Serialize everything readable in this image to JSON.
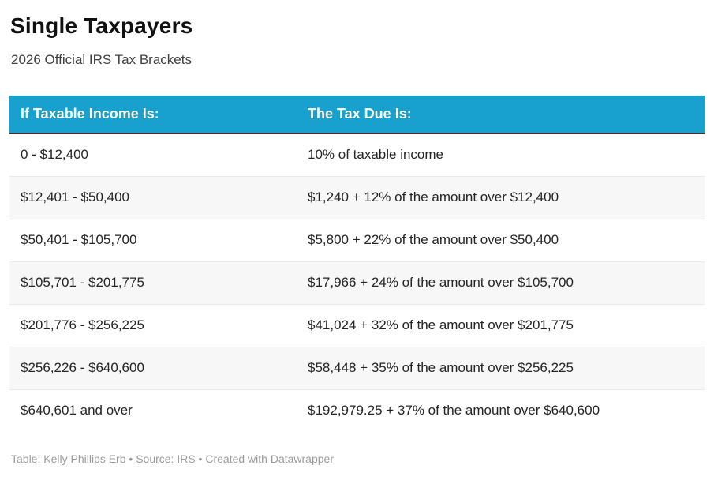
{
  "chart_data": {
    "type": "table",
    "title": "Single Taxpayers",
    "subtitle": "2026 Official IRS Tax Brackets",
    "columns": [
      "If Taxable Income Is:",
      "The Tax Due Is:"
    ],
    "rows": [
      [
        "0 - $12,400",
        "10% of taxable income"
      ],
      [
        "$12,401 - $50,400",
        "$1,240 + 12% of the amount over $12,400"
      ],
      [
        "$50,401 - $105,700",
        "$5,800 + 22% of the amount over $50,400"
      ],
      [
        "$105,701 - $201,775",
        "$17,966 + 24% of the amount over $105,700"
      ],
      [
        "$201,776 - $256,225",
        "$41,024 + 32% of the amount over $201,775"
      ],
      [
        "$256,226 - $640,600",
        "$58,448 + 35% of the amount over $256,225"
      ],
      [
        "$640,601 and over",
        "$192,979.25 + 37% of the amount over $640,600"
      ]
    ],
    "footer": "Table: Kelly Phillips Erb • Source: IRS • Created with Datawrapper",
    "legend_position": "none",
    "grid": false
  },
  "colors": {
    "header_bg": "#18A0CF",
    "header_text": "#FFFFFF",
    "header_border": "#333333",
    "row_alt_bg": "#F7F7F7",
    "row_divider": "#EBEBEB",
    "body_text": "#252525",
    "title_text": "#111111",
    "subtitle_text": "#404040",
    "footer_text": "#9B9B9B"
  }
}
